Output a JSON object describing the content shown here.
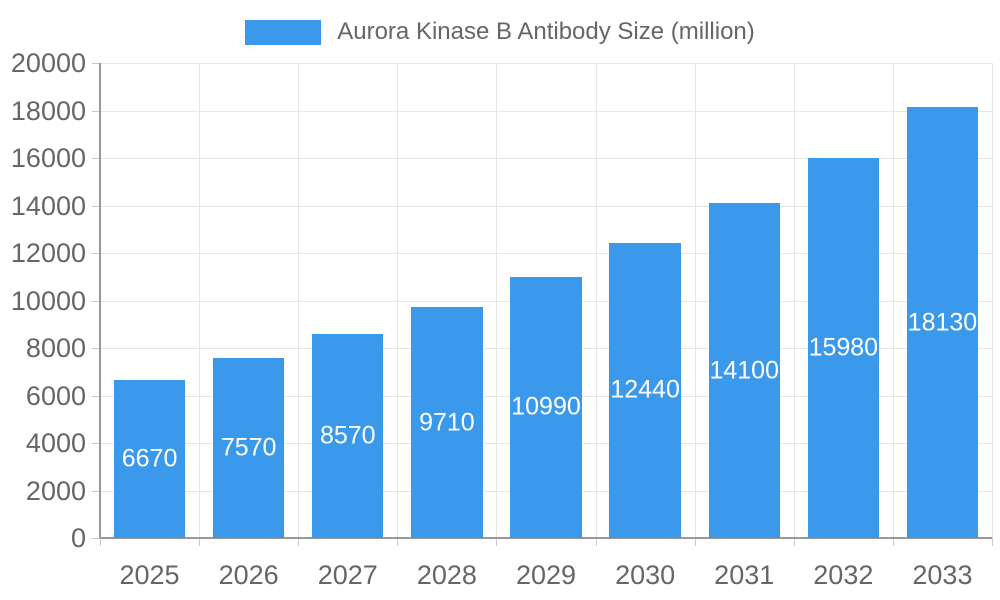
{
  "chart_data": {
    "type": "bar",
    "title": "Aurora Kinase B Antibody Size (million)",
    "categories": [
      "2025",
      "2026",
      "2027",
      "2028",
      "2029",
      "2030",
      "2031",
      "2032",
      "2033"
    ],
    "values": [
      6670,
      7570,
      8570,
      9710,
      10990,
      12440,
      14100,
      15980,
      18130
    ],
    "xlabel": "",
    "ylabel": "",
    "ylim": [
      0,
      20000
    ],
    "ytick_step": 2000,
    "grid": true,
    "legend_position": "top-center",
    "bar_label_position": "inside-center",
    "colors": {
      "bar": "#3B99EC",
      "bar_label": "#FFFFFF",
      "axis_line": "#999999",
      "tick": "#C9C9C9",
      "gridline": "#E6E6E6",
      "axis_label": "#666666",
      "legend_text": "#666666",
      "background": "#FFFFFF"
    }
  }
}
